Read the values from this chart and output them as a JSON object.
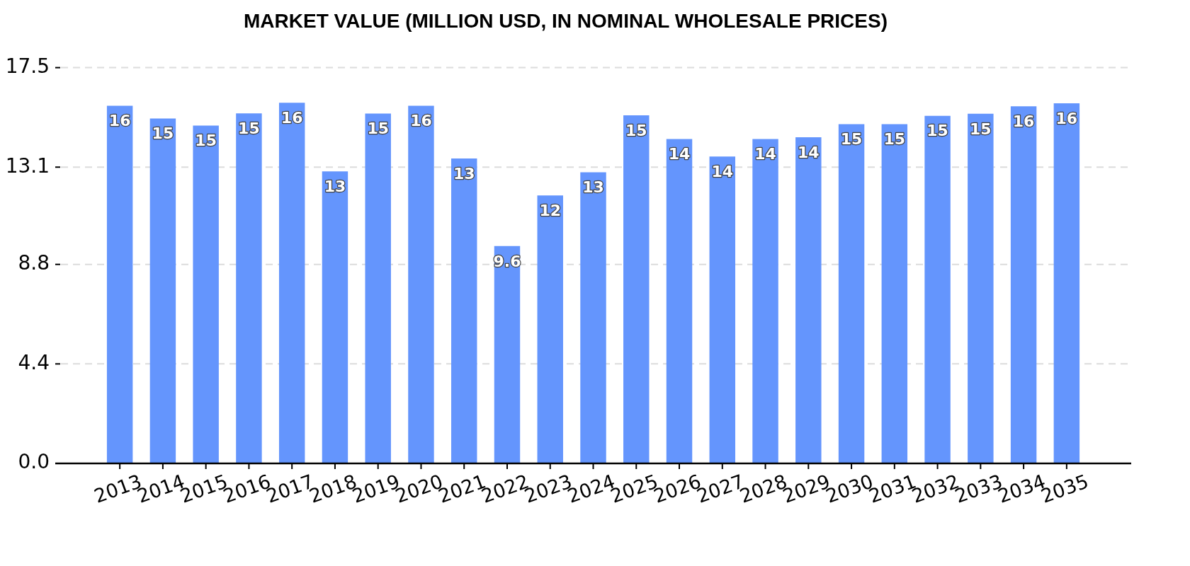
{
  "chart_data": {
    "type": "bar",
    "title": "MARKET VALUE (MILLION USD, IN NOMINAL WHOLESALE PRICES)",
    "categories": [
      "2013",
      "2014",
      "2015",
      "2016",
      "2017",
      "2018",
      "2019",
      "2020",
      "2021",
      "2022",
      "2023",
      "2024",
      "2025",
      "2026",
      "2027",
      "2028",
      "2029",
      "2030",
      "2031",
      "2032",
      "2033",
      "2034",
      "2035"
    ],
    "values": [
      15.81,
      15.25,
      14.94,
      15.48,
      15.95,
      12.91,
      15.47,
      15.81,
      13.48,
      9.61,
      11.85,
      12.87,
      15.39,
      14.34,
      13.57,
      14.34,
      14.42,
      15.0,
      15.0,
      15.37,
      15.46,
      15.79,
      15.92
    ],
    "value_labels": [
      "16",
      "15",
      "15",
      "15",
      "16",
      "13",
      "15",
      "16",
      "13",
      "9.6",
      "12",
      "13",
      "15",
      "14",
      "14",
      "14",
      "14",
      "15",
      "15",
      "15",
      "15",
      "16",
      "16"
    ],
    "color": "#6495fd",
    "ylim": [
      0,
      17.5
    ],
    "yticks": [
      {
        "value": 0,
        "label": "0.0"
      },
      4.4,
      8.8,
      13.1,
      17.5
    ],
    "grid": "y"
  }
}
